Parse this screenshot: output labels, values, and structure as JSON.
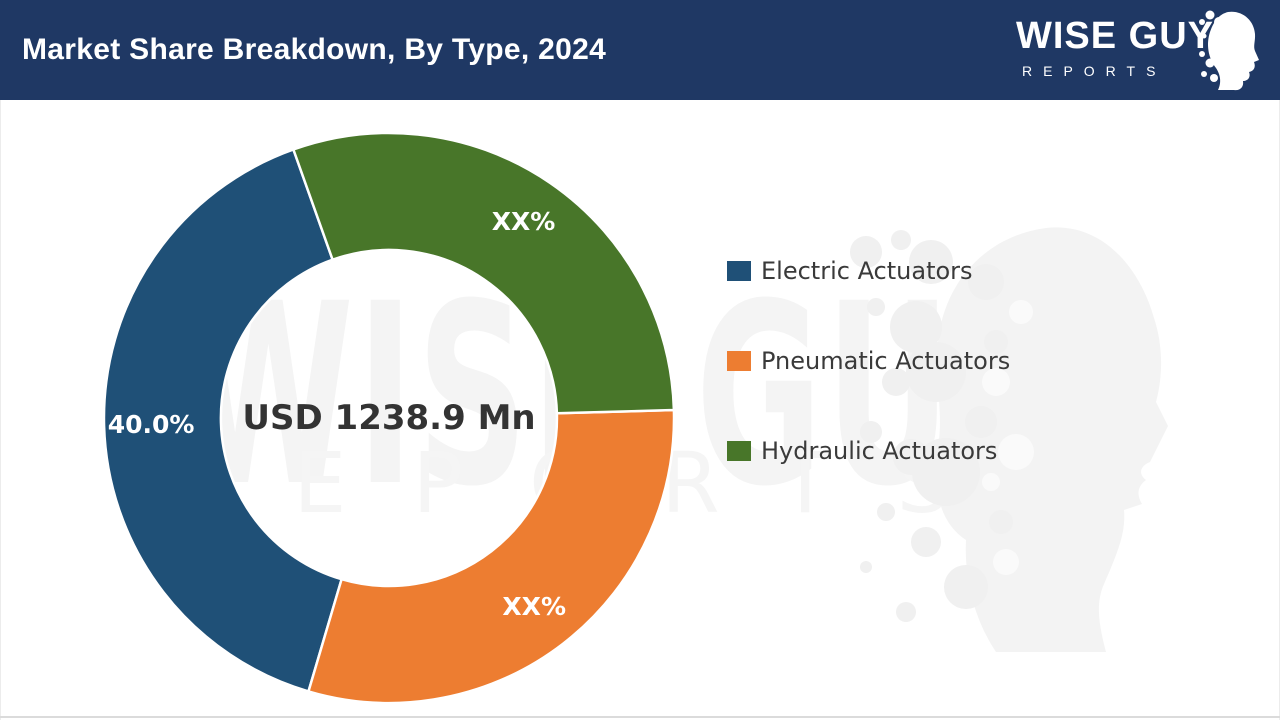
{
  "header": {
    "title": "Market Share Breakdown, By Type, 2024",
    "logo_line1": "WISE GUY",
    "logo_line2": "REPORTS"
  },
  "watermark": {
    "line1": "WISE GUY",
    "line2": "REPORTS"
  },
  "chart_data": {
    "type": "pie",
    "subtype": "donut",
    "title": "Market Share Breakdown, By Type, 2024",
    "center_label": "USD 1238.9 Mn",
    "categories": [
      "Electric Actuators",
      "Pneumatic Actuators",
      "Hydraulic Actuators"
    ],
    "values": [
      40,
      30,
      30
    ],
    "displayed_labels": [
      "40.0%",
      "XX%",
      "XX%"
    ],
    "colors": [
      "#1F5077",
      "#ED7D31",
      "#487629"
    ],
    "start_angle_deg": 109.6,
    "direction": "counterclockwise",
    "inner_radius_ratio": 0.59,
    "legend_position": "right"
  },
  "legend": {
    "items": [
      {
        "label": "Electric Actuators",
        "color": "#1F5077"
      },
      {
        "label": "Pneumatic Actuators",
        "color": "#ED7D31"
      },
      {
        "label": "Hydraulic Actuators",
        "color": "#487629"
      }
    ]
  },
  "colors": {
    "header_background": "#1F3864",
    "header_text": "#FFFFFF",
    "center_label_text": "#333333",
    "segment_label_text": "#FFFFFF",
    "legend_text": "#3A3A3A",
    "watermark": "#F4F4F4",
    "bottom_line": "#DBDBDB"
  }
}
